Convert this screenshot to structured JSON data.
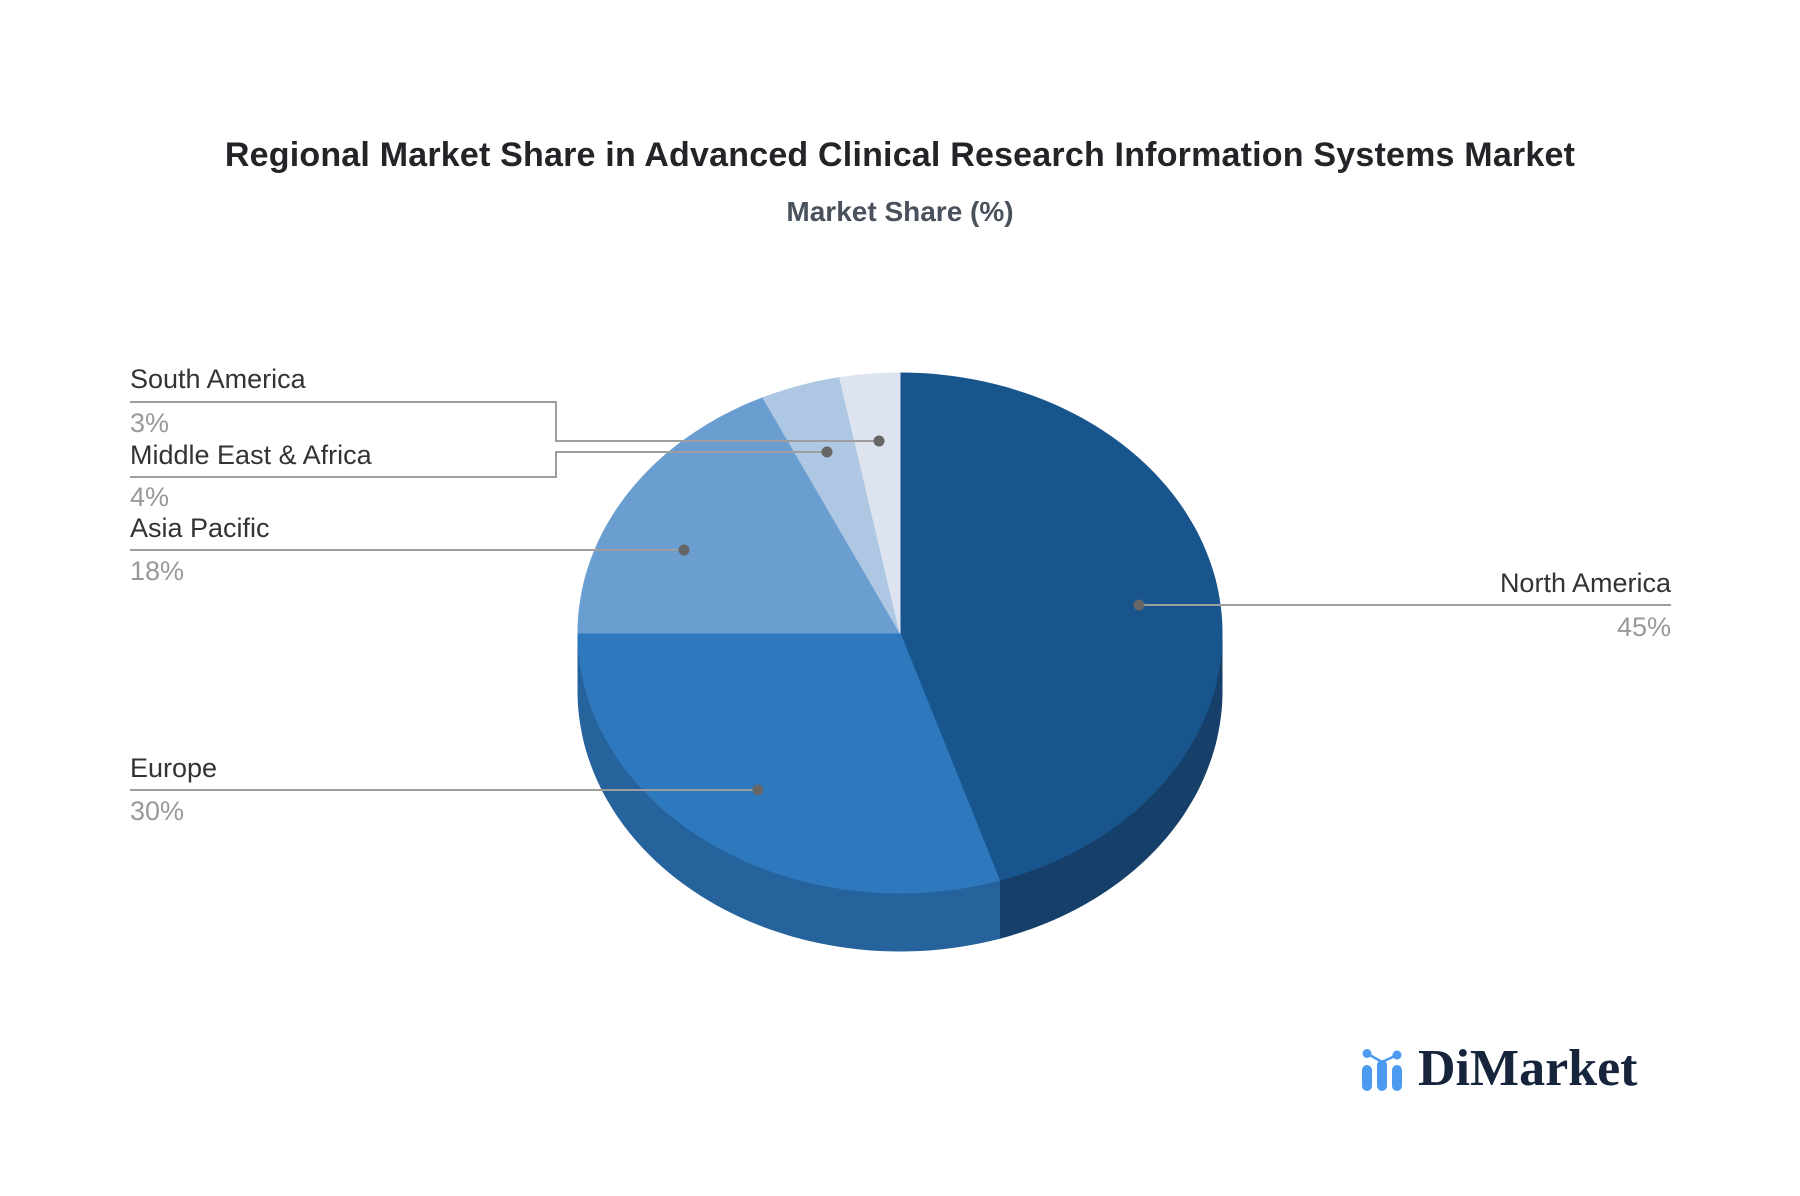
{
  "title": "Regional Market Share in Advanced Clinical Research Information Systems Market",
  "subtitle": "Market Share (%)",
  "brand": {
    "name": "DiMarket",
    "icon": "bar-chart-logo-icon",
    "icon_color": "#4d9bf1",
    "text_color": "#16243c"
  },
  "chart_data": {
    "type": "pie",
    "style": "3d",
    "direction": "clockwise",
    "start_angle_deg": 0,
    "legend": "none",
    "label_style": "callout-lines",
    "title": "Regional Market Share in Advanced Clinical Research Information Systems Market",
    "subtitle": "Market Share (%)",
    "unit": "%",
    "categories": [
      "North America",
      "Europe",
      "Asia Pacific",
      "Middle East & Africa",
      "South America"
    ],
    "values": [
      45,
      30,
      18,
      4,
      3
    ],
    "slices": [
      {
        "label": "North America",
        "value": 45,
        "pct_label": "45%",
        "color": "#19558d",
        "side_color": "#16406a"
      },
      {
        "label": "Europe",
        "value": 30,
        "pct_label": "30%",
        "color": "#2e78be",
        "side_color": "#26639d"
      },
      {
        "label": "Asia Pacific",
        "value": 18,
        "pct_label": "18%",
        "color": "#6a9ed0",
        "side_color": "#4f7dab"
      },
      {
        "label": "Middle East & Africa",
        "value": 4,
        "pct_label": "4%",
        "color": "#aec8e3",
        "side_color": "#8ba4c0"
      },
      {
        "label": "South America",
        "value": 3,
        "pct_label": "3%",
        "color": "#dde4ef",
        "side_color": "#b5bfce"
      }
    ],
    "callout_line_color": "#9e9e9e",
    "callout_dot_color": "#666666",
    "label_text_color": "#333333",
    "pct_text_color": "#999999"
  }
}
